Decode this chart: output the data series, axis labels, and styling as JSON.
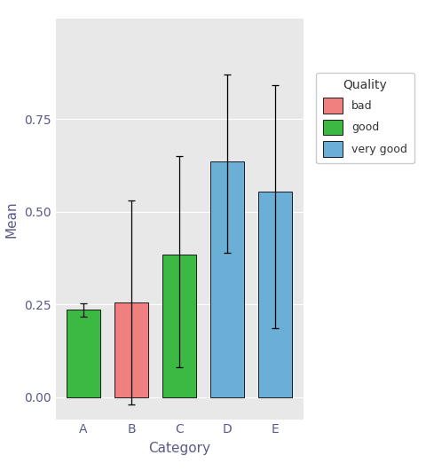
{
  "categories": [
    "A",
    "B",
    "C",
    "D",
    "E"
  ],
  "means": [
    0.235,
    0.255,
    0.385,
    0.635,
    0.555
  ],
  "errors_upper": [
    0.018,
    0.275,
    0.265,
    0.235,
    0.285
  ],
  "errors_lower": [
    0.018,
    0.275,
    0.305,
    0.245,
    0.37
  ],
  "bar_colors": [
    "#3cb943",
    "#f08080",
    "#3cb943",
    "#6baed6",
    "#6baed6"
  ],
  "quality_labels": [
    "bad",
    "good",
    "very good"
  ],
  "quality_colors": [
    "#f08080",
    "#3cb943",
    "#6baed6"
  ],
  "xlabel": "Category",
  "ylabel": "Mean",
  "ylim": [
    -0.06,
    1.02
  ],
  "yticks": [
    0.0,
    0.25,
    0.5,
    0.75
  ],
  "plot_bg_color": "#e8e8e8",
  "fig_bg_color": "#ffffff",
  "grid_color": "#ffffff",
  "legend_title": "Quality",
  "bar_edge_color": "black",
  "bar_edge_width": 0.6,
  "error_capsize": 3,
  "error_linewidth": 0.9,
  "axis_label_color": "#5a5a8a",
  "tick_label_color": "#5a5a8a"
}
